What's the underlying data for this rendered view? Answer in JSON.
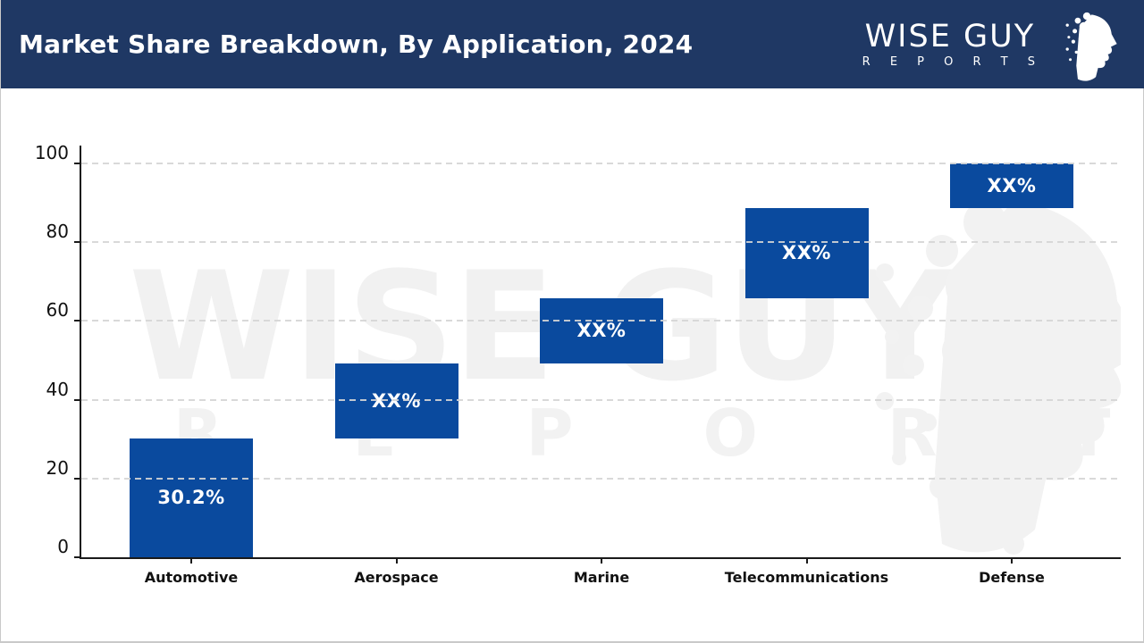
{
  "header": {
    "title": "Market Share Breakdown, By Application, 2024",
    "logo": {
      "line1": "WISE GUY",
      "line2": "R E P O R T S"
    }
  },
  "watermark": {
    "line1": "WISE GUY",
    "line2": "R E P O R T S"
  },
  "colors": {
    "header_bg": "#1f3864",
    "bar": "#0a4a9e",
    "bar_label": "#ffffff",
    "grid": "#d5d5d5",
    "axis": "#1a1a1a",
    "watermark": "#f1f1f1"
  },
  "chart_data": {
    "type": "bar",
    "subtype": "waterfall",
    "title": "Market Share Breakdown, By Application, 2024",
    "xlabel": "",
    "ylabel": "",
    "ylim": [
      0,
      100
    ],
    "y_ticks": [
      0,
      20,
      40,
      60,
      80,
      100
    ],
    "grid": "horizontal-dashed-over-bars",
    "legend": "none",
    "categories": [
      "Automotive",
      "Aerospace",
      "Marine",
      "Telecommunications",
      "Defense"
    ],
    "segments": [
      {
        "category": "Automotive",
        "start": 0,
        "end": 30.2,
        "label": "30.2%"
      },
      {
        "category": "Aerospace",
        "start": 30.2,
        "end": 49.3,
        "label": "XX%"
      },
      {
        "category": "Marine",
        "start": 49.3,
        "end": 65.8,
        "label": "XX%"
      },
      {
        "category": "Telecommunications",
        "start": 65.8,
        "end": 88.7,
        "label": "XX%"
      },
      {
        "category": "Defense",
        "start": 88.7,
        "end": 100,
        "label": "XX%"
      }
    ]
  }
}
